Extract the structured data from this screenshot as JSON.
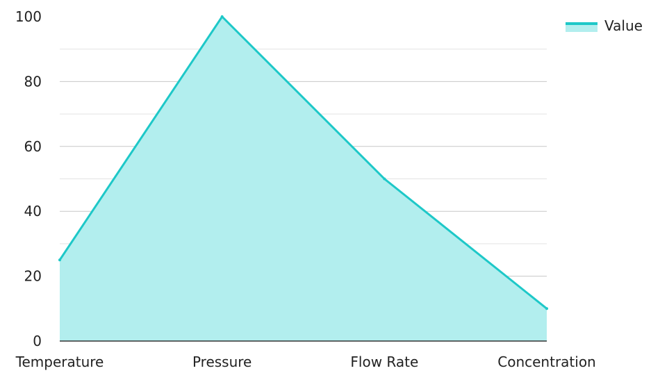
{
  "chart_data": {
    "type": "area",
    "categories": [
      "Temperature",
      "Pressure",
      "Flow Rate",
      "Concentration"
    ],
    "series": [
      {
        "name": "Value",
        "values": [
          25,
          100,
          50,
          10
        ],
        "line_color": "#1ec8c8",
        "fill_color": "#b2eeee"
      }
    ],
    "ylim": [
      0,
      100
    ],
    "y_ticks": [
      "0",
      "20",
      "40",
      "60",
      "80",
      "100"
    ],
    "grid": true,
    "legend_position": "top-right"
  }
}
